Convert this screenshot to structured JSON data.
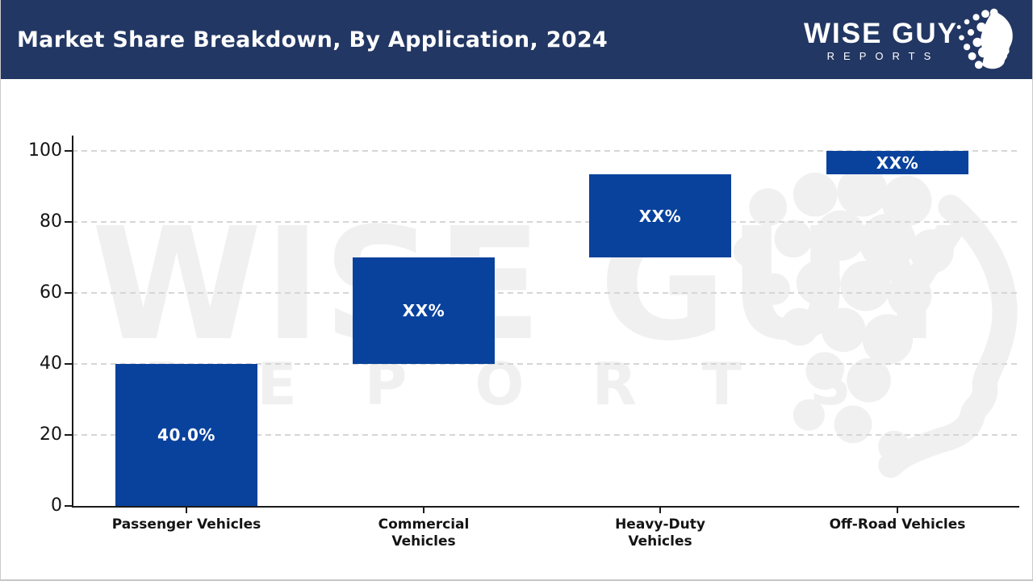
{
  "header": {
    "title": "Market Share Breakdown, By Application, 2024",
    "bg_color": "#223763",
    "logo": {
      "line1": "WISE GUY",
      "line2": "REPORTS"
    }
  },
  "watermark": {
    "line1": "WISE GUY",
    "line2": "REPORTS"
  },
  "chart_data": {
    "type": "bar",
    "subtype": "waterfall",
    "title": "Market Share Breakdown, By Application, 2024",
    "categories": [
      "Passenger Vehicles",
      "Commercial Vehicles",
      "Heavy-Duty Vehicles",
      "Off-Road Vehicles"
    ],
    "category_label_lines": [
      [
        "Passenger Vehicles"
      ],
      [
        "Commercial",
        "Vehicles"
      ],
      [
        "Heavy-Duty",
        "Vehicles"
      ],
      [
        "Off-Road Vehicles"
      ]
    ],
    "series": [
      {
        "name": "Market share (%)",
        "segment_start": [
          0,
          40,
          70,
          93.4
        ],
        "segment_end": [
          40,
          70,
          93.4,
          100
        ],
        "values": [
          40,
          30,
          23.4,
          6.6
        ]
      }
    ],
    "bar_labels": [
      "40.0%",
      "XX%",
      "XX%",
      "XX%"
    ],
    "ylim": [
      0,
      100
    ],
    "yticks": [
      0,
      20,
      40,
      60,
      80,
      100
    ],
    "bar_color": "#09429d",
    "grid": "horizontal-dashed",
    "legend": "none"
  }
}
